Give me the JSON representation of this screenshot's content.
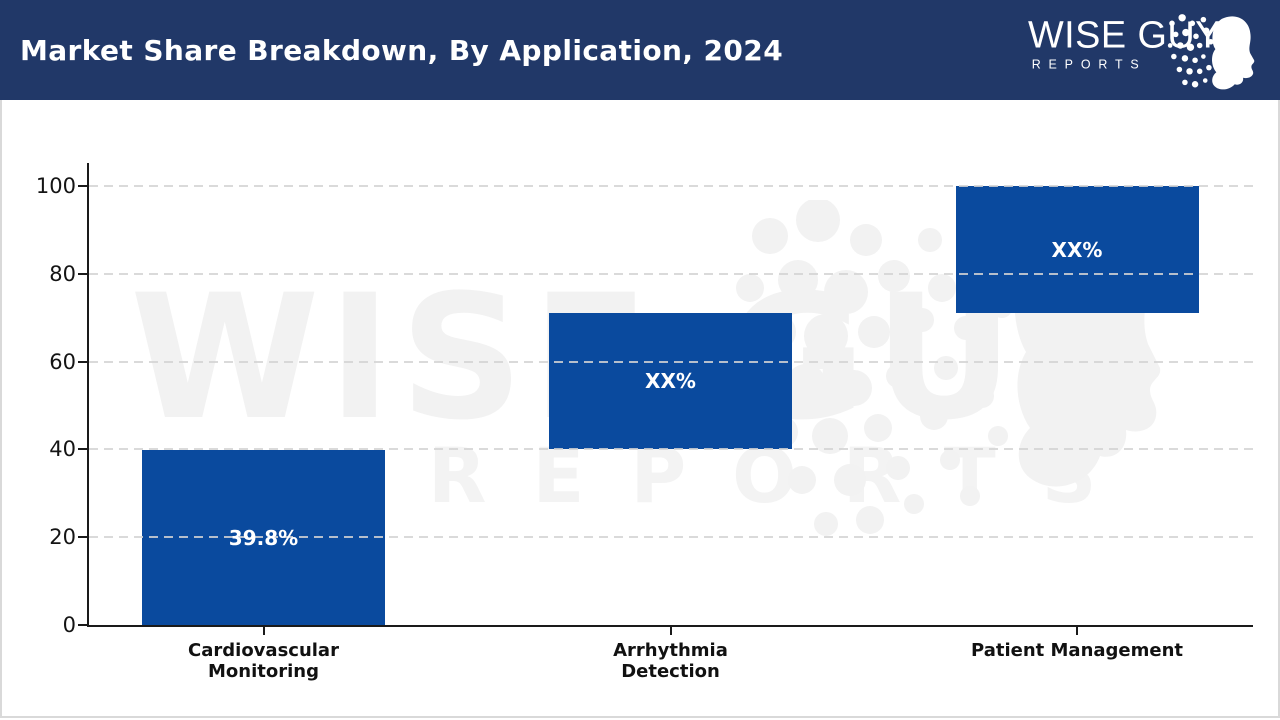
{
  "header": {
    "title": "Market Share Breakdown, By Application, 2024",
    "background_color": "#213868",
    "logo": {
      "line1": "WISE GUY",
      "line2": "REPORTS"
    }
  },
  "watermark": {
    "line1": "WISE GUY",
    "line2": "REPORTS"
  },
  "chart_data": {
    "type": "bar",
    "subtype": "waterfall",
    "title": "Market Share Breakdown, By Application, 2024",
    "xlabel": "",
    "ylabel": "",
    "ylim": [
      0,
      105
    ],
    "yticks": [
      0,
      20,
      40,
      60,
      80,
      100
    ],
    "grid": "dashed-horizontal",
    "legend": "none",
    "bar_color": "#0a4a9e",
    "bar_label_color": "#ffffff",
    "categories": [
      "Cardiovascular Monitoring",
      "Arrhythmia Detection",
      "Patient Management"
    ],
    "bars": [
      {
        "category_lines": [
          "Cardiovascular",
          "Monitoring"
        ],
        "start": 0,
        "end": 39.8,
        "label": "39.8%"
      },
      {
        "category_lines": [
          "Arrhythmia",
          "Detection"
        ],
        "start": 40,
        "end": 71,
        "label": "XX%"
      },
      {
        "category_lines": [
          "Patient Management"
        ],
        "start": 71,
        "end": 100,
        "label": "XX%"
      }
    ]
  }
}
